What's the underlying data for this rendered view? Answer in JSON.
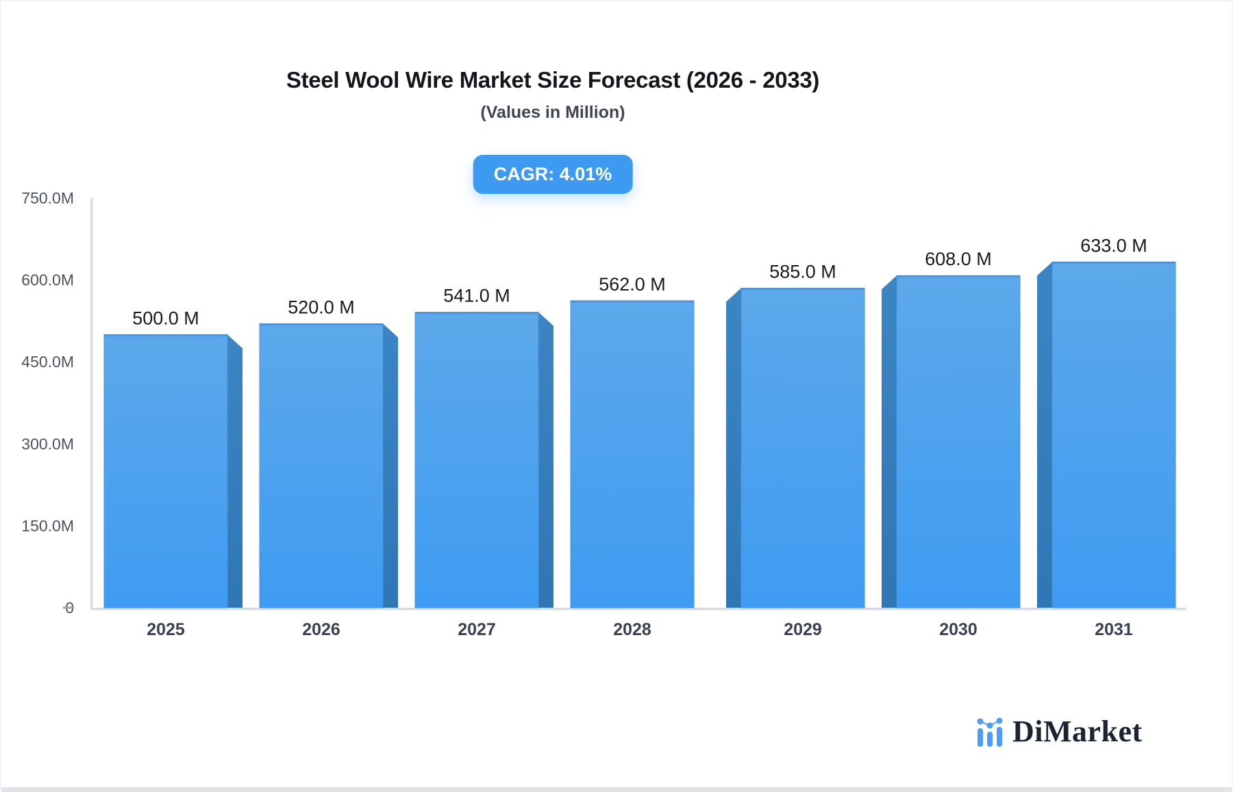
{
  "header": {
    "title": "Steel Wool Wire Market Size Forecast (2026 - 2033)",
    "subtitle": "(Values in Million)"
  },
  "badge": {
    "label": "CAGR: 4.01%",
    "bg": "#3c9bf1",
    "text_color": "#ffffff"
  },
  "chart_data": {
    "type": "bar",
    "title": "Steel Wool Wire Market Size Forecast (2026 - 2033)",
    "subtitle": "(Values in Million)",
    "unit": "Million",
    "categories": [
      "2025",
      "2026",
      "2027",
      "2028",
      "2029",
      "2030",
      "2031"
    ],
    "values": [
      500,
      520,
      541,
      562,
      585,
      608,
      633
    ],
    "bar_labels": [
      "500.0 M",
      "520.0 M",
      "541.0 M",
      "562.0 M",
      "585.0 M",
      "608.0 M",
      "633.0 M"
    ],
    "ylim": [
      0,
      750
    ],
    "y_ticks": [
      {
        "value": 750,
        "label": "750.0M"
      },
      {
        "value": 600,
        "label": "600.0M"
      },
      {
        "value": 450,
        "label": "450.0M"
      },
      {
        "value": 300,
        "label": "300.0M"
      },
      {
        "value": 150,
        "label": "150.0M"
      },
      {
        "value": 0,
        "label": "0"
      }
    ],
    "grid": false,
    "legend": false,
    "cagr": "4.01%",
    "colors": {
      "bar_top": "#5ca8ea",
      "bar_bottom": "#3f9cf2",
      "bar_side_top": "#3c85c4",
      "bar_side_bottom": "#2f76b5",
      "bar_edge": "#4a92da",
      "axis": "#d8dbe1",
      "tick_dash": "#9aa2ac",
      "tick_text": "#4b5260",
      "year_text": "#394150",
      "value_text": "#16191e"
    }
  },
  "logo": {
    "text": "DiMarket",
    "icon": "bar-chart-sparkline-icon",
    "icon_color": "#4c9df6",
    "text_color": "#1a2433"
  }
}
